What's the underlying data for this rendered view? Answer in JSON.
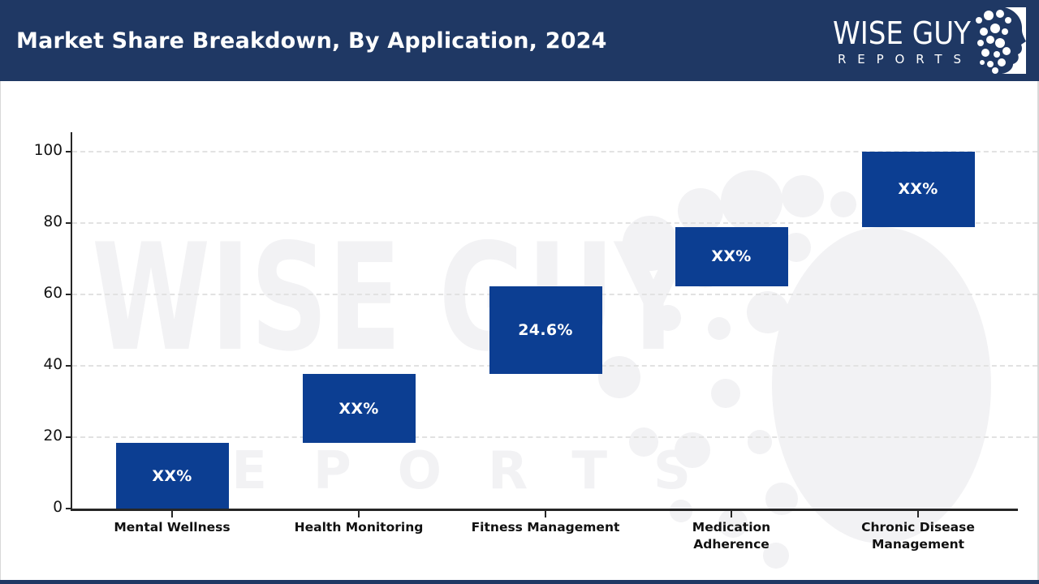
{
  "header": {
    "title": "Market Share Breakdown, By Application, 2024",
    "logo": {
      "line1": "WISE GUY",
      "line2": "REPORTS"
    }
  },
  "watermark": {
    "line1": "WISE GUY",
    "line2": "REPORTS"
  },
  "colors": {
    "header_bg": "#1f3864",
    "bar_fill": "#0c3e92",
    "bar_label_text": "#ffffff",
    "grid_line": "#e2e2e2",
    "axis_line": "#262626",
    "tick_text": "#141414",
    "watermark": "#f2f2f4"
  },
  "chart_data": {
    "type": "bar",
    "subtype": "waterfall-floating-bars",
    "title": "Market Share Breakdown, By Application, 2024",
    "xlabel": "",
    "ylabel": "",
    "ylim": [
      0,
      105
    ],
    "yticks": [
      0,
      20,
      40,
      60,
      80,
      100
    ],
    "ytick_labels": [
      "0",
      "20",
      "40",
      "60",
      "80",
      "100"
    ],
    "grid": "horizontal-dashed",
    "legend": "none",
    "categories": [
      "Mental Wellness",
      "Health Monitoring",
      "Fitness Management",
      "Medication Adherence",
      "Chronic Disease Management"
    ],
    "revealed_value_note": "Only Fitness Management shows a numeric label (24.6%); other bars are masked as XX%",
    "segments": [
      {
        "category": "Mental Wellness",
        "label_lines": [
          "Mental Wellness"
        ],
        "value_label": "XX%",
        "start": 0,
        "end": 18.4
      },
      {
        "category": "Health Monitoring",
        "label_lines": [
          "Health Monitoring"
        ],
        "value_label": "XX%",
        "start": 18.4,
        "end": 37.7
      },
      {
        "category": "Fitness Management",
        "label_lines": [
          "Fitness Management"
        ],
        "value_label": "24.6%",
        "start": 37.7,
        "end": 62.3
      },
      {
        "category": "Medication Adherence",
        "label_lines": [
          "Medication",
          "Adherence"
        ],
        "value_label": "XX%",
        "start": 62.3,
        "end": 78.9
      },
      {
        "category": "Chronic Disease Management",
        "label_lines": [
          "Chronic Disease",
          "Management"
        ],
        "value_label": "XX%",
        "start": 78.9,
        "end": 100
      }
    ]
  }
}
